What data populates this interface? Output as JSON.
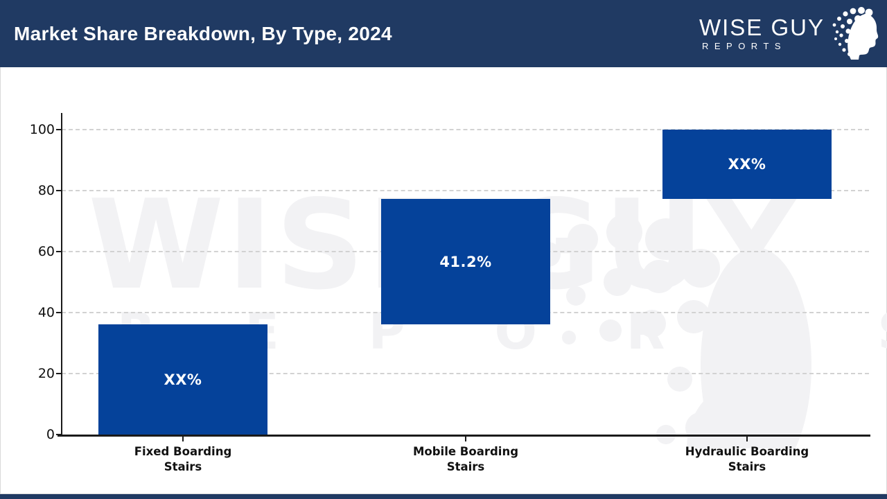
{
  "header": {
    "title": "Market Share Breakdown, By Type, 2024",
    "logo": {
      "wordmark": "WISE GUY",
      "subtitle": "REPORTS"
    }
  },
  "watermark": {
    "wordmark": "WISE GUY",
    "subtitle": "R E P O R T S"
  },
  "colors": {
    "header_bg": "#203a63",
    "footer_bg": "#203a63",
    "bar": "#05429a",
    "bar_label": "#ffffff",
    "grid": "#d2d2d2",
    "axis": "#1a1a1a",
    "text": "#111111",
    "watermark": "#f2f2f4",
    "frame_border": "#d9d9d9"
  },
  "chart_data": {
    "type": "bar",
    "subtype": "waterfall",
    "title": "Market Share Breakdown, By Type, 2024",
    "xlabel": "",
    "ylabel": "",
    "ylim": [
      0,
      100
    ],
    "yticks": [
      0,
      20,
      40,
      60,
      80,
      100
    ],
    "grid": "horizontal-dashed",
    "legend": "none",
    "categories": [
      "Fixed Boarding\nStairs",
      "Mobile Boarding\nStairs",
      "Hydraulic Boarding\nStairs"
    ],
    "segments": [
      {
        "category": "Fixed Boarding Stairs",
        "start": 0,
        "end": 36.1,
        "value_label": "XX%"
      },
      {
        "category": "Mobile Boarding Stairs",
        "start": 36.1,
        "end": 77.3,
        "value_label": "41.2%"
      },
      {
        "category": "Hydraulic Boarding Stairs",
        "start": 77.3,
        "end": 100,
        "value_label": "XX%"
      }
    ]
  }
}
